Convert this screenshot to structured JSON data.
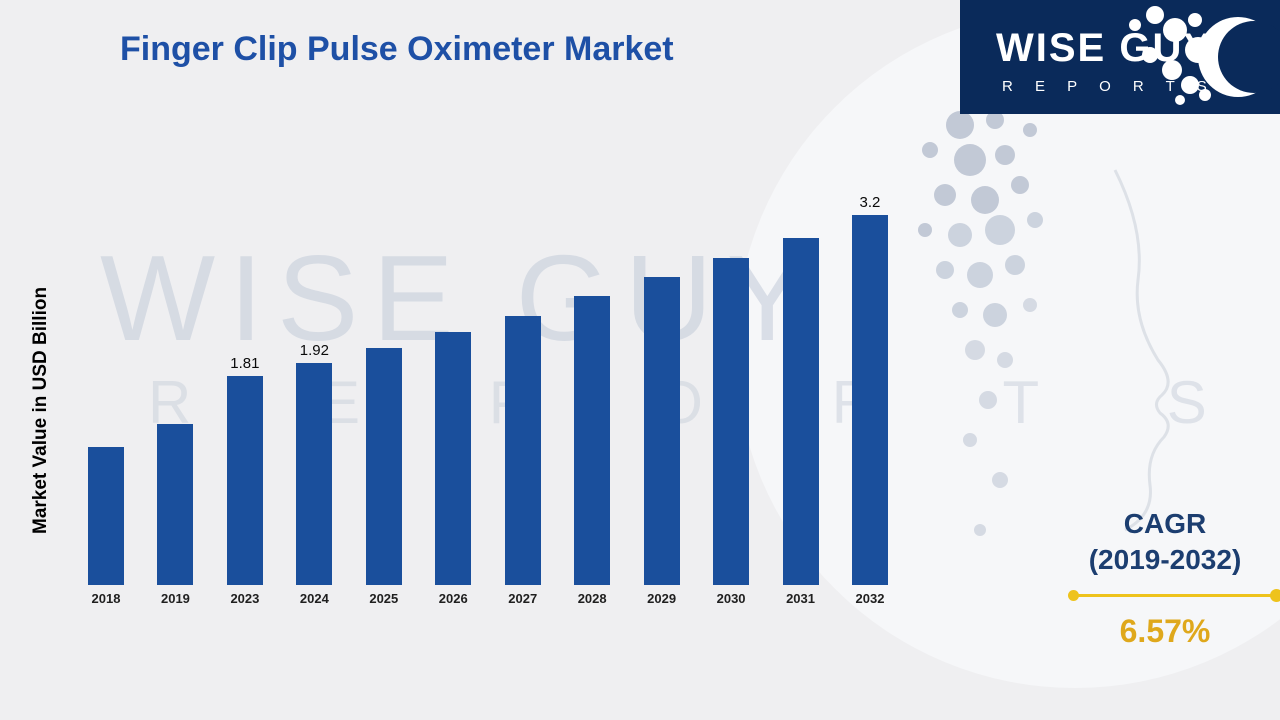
{
  "page": {
    "title": "Finger Clip Pulse Oximeter Market",
    "ylabel": "Market Value in USD Billion"
  },
  "logo": {
    "line1": "WISE GUY",
    "line2": "R E P O R T S"
  },
  "watermark": {
    "line1": "WISE GUY",
    "line2": "R E P O R T S"
  },
  "cagr": {
    "label": "CAGR",
    "range": "(2019-2032)",
    "value": "6.57%"
  },
  "colors": {
    "bar_blue": "#1a4f9c",
    "title_blue": "#1e50a6",
    "logo_navy": "#0a2a5a",
    "cagr_text_blue": "#1c3e70",
    "accent_gold": "#eec31c",
    "background_gray": "#efeff1"
  },
  "icons": {
    "logo_face": "logo-face-dots-icon",
    "background_face": "face-dots-decoration"
  },
  "chart_data": {
    "type": "bar",
    "title": "Finger Clip Pulse Oximeter Market",
    "xlabel": "",
    "ylabel": "Market Value in USD Billion",
    "categories": [
      "2018",
      "2019",
      "2023",
      "2024",
      "2025",
      "2026",
      "2027",
      "2028",
      "2029",
      "2030",
      "2031",
      "2032"
    ],
    "values": [
      1.19,
      1.39,
      1.81,
      1.92,
      2.05,
      2.19,
      2.33,
      2.5,
      2.66,
      2.83,
      3.0,
      3.2
    ],
    "data_labels": [
      "",
      "",
      "1.81",
      "1.92",
      "",
      "",
      "",
      "",
      "",
      "",
      "",
      "3.2"
    ],
    "ylim": [
      0,
      3.5
    ],
    "unit": "USD Billion",
    "grid": false,
    "legend": "none",
    "bar_color": "#1a4f9c"
  }
}
